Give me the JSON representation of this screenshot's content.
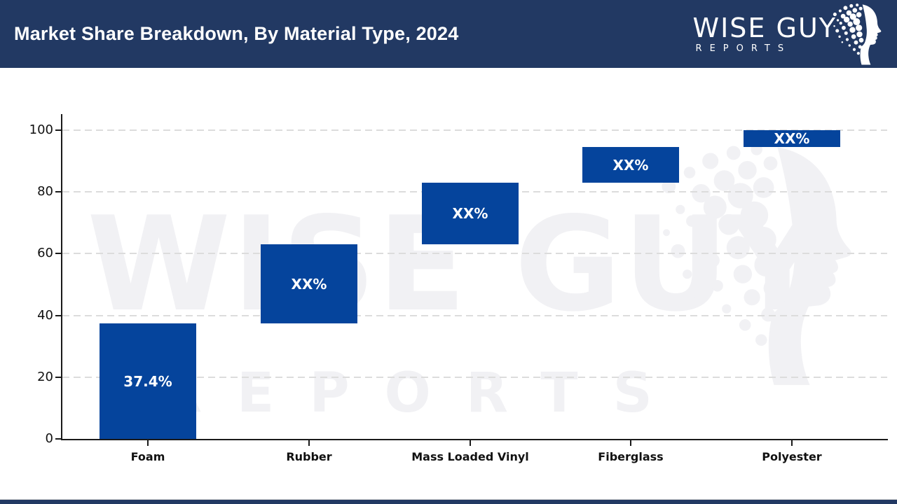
{
  "header": {
    "title": "Market Share Breakdown, By Material Type, 2024",
    "bg_color": "#223963",
    "logo": {
      "line1": "WISE GUY",
      "line2": "REPORTS"
    }
  },
  "watermark": {
    "line1": "WISE GUY",
    "line2": "REPORTS"
  },
  "chart_data": {
    "type": "bar",
    "subtype": "waterfall",
    "title": "Market Share Breakdown, By Material Type, 2024",
    "categories": [
      "Foam",
      "Rubber",
      "Mass Loaded Vinyl",
      "Fiberglass",
      "Polyester"
    ],
    "segments": [
      {
        "category": "Foam",
        "start": 0,
        "end": 37.4,
        "label": "37.4%"
      },
      {
        "category": "Rubber",
        "start": 37.4,
        "end": 63.0,
        "label": "XX%"
      },
      {
        "category": "Mass Loaded Vinyl",
        "start": 63.0,
        "end": 83.0,
        "label": "XX%"
      },
      {
        "category": "Fiberglass",
        "start": 83.0,
        "end": 94.5,
        "label": "XX%"
      },
      {
        "category": "Polyester",
        "start": 94.5,
        "end": 100.0,
        "label": "XX%"
      }
    ],
    "y_ticks": [
      0,
      20,
      40,
      60,
      80,
      100
    ],
    "ylim": [
      0,
      105
    ],
    "xlabel": "",
    "ylabel": "",
    "grid": "horizontal-dashed",
    "legend": "none",
    "bar_color": "#05449c",
    "bar_label_color": "#ffffff",
    "axis_color": "#1a1a1a",
    "gridline_color": "#dcdcdc"
  },
  "footer": {
    "accent_color": "#223963"
  }
}
